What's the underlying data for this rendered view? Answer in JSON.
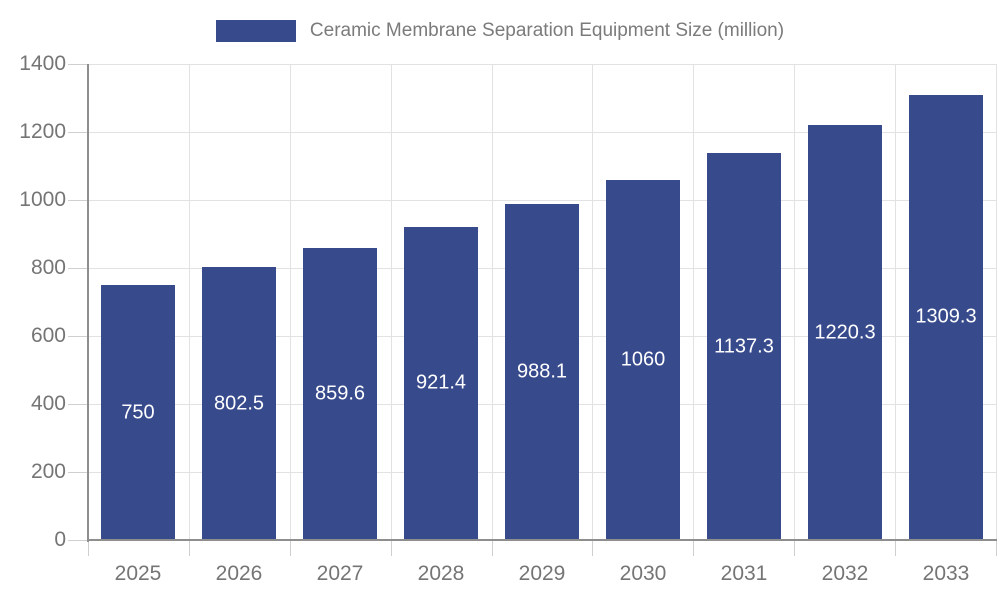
{
  "chart_data": {
    "type": "bar",
    "title": "Ceramic Membrane Separation Equipment Size (million)",
    "legend": [
      "Ceramic Membrane Separation Equipment Size (million)"
    ],
    "legend_position": "top-center",
    "categories": [
      "2025",
      "2026",
      "2027",
      "2028",
      "2029",
      "2030",
      "2031",
      "2032",
      "2033"
    ],
    "values": [
      750,
      802.5,
      859.6,
      921.4,
      988.1,
      1060,
      1137.3,
      1220.3,
      1309.3
    ],
    "value_labels": [
      "750",
      "802.5",
      "859.6",
      "921.4",
      "988.1",
      "1060",
      "1137.3",
      "1220.3",
      "1309.3"
    ],
    "xlabel": "",
    "ylabel": "",
    "ylim": [
      0,
      1400
    ],
    "y_tick_step": 200,
    "y_ticks": [
      "0",
      "200",
      "400",
      "600",
      "800",
      "1000",
      "1200",
      "1400"
    ],
    "grid": true,
    "colors": {
      "bar": "#374a8c",
      "bar_label": "#ffffff",
      "grid": "#e2e2e2",
      "tick": "#cfcfcf",
      "axis": "#8e8e8e",
      "tick_label": "#757575",
      "legend_text": "#7b7b7b",
      "background": "#ffffff"
    }
  }
}
